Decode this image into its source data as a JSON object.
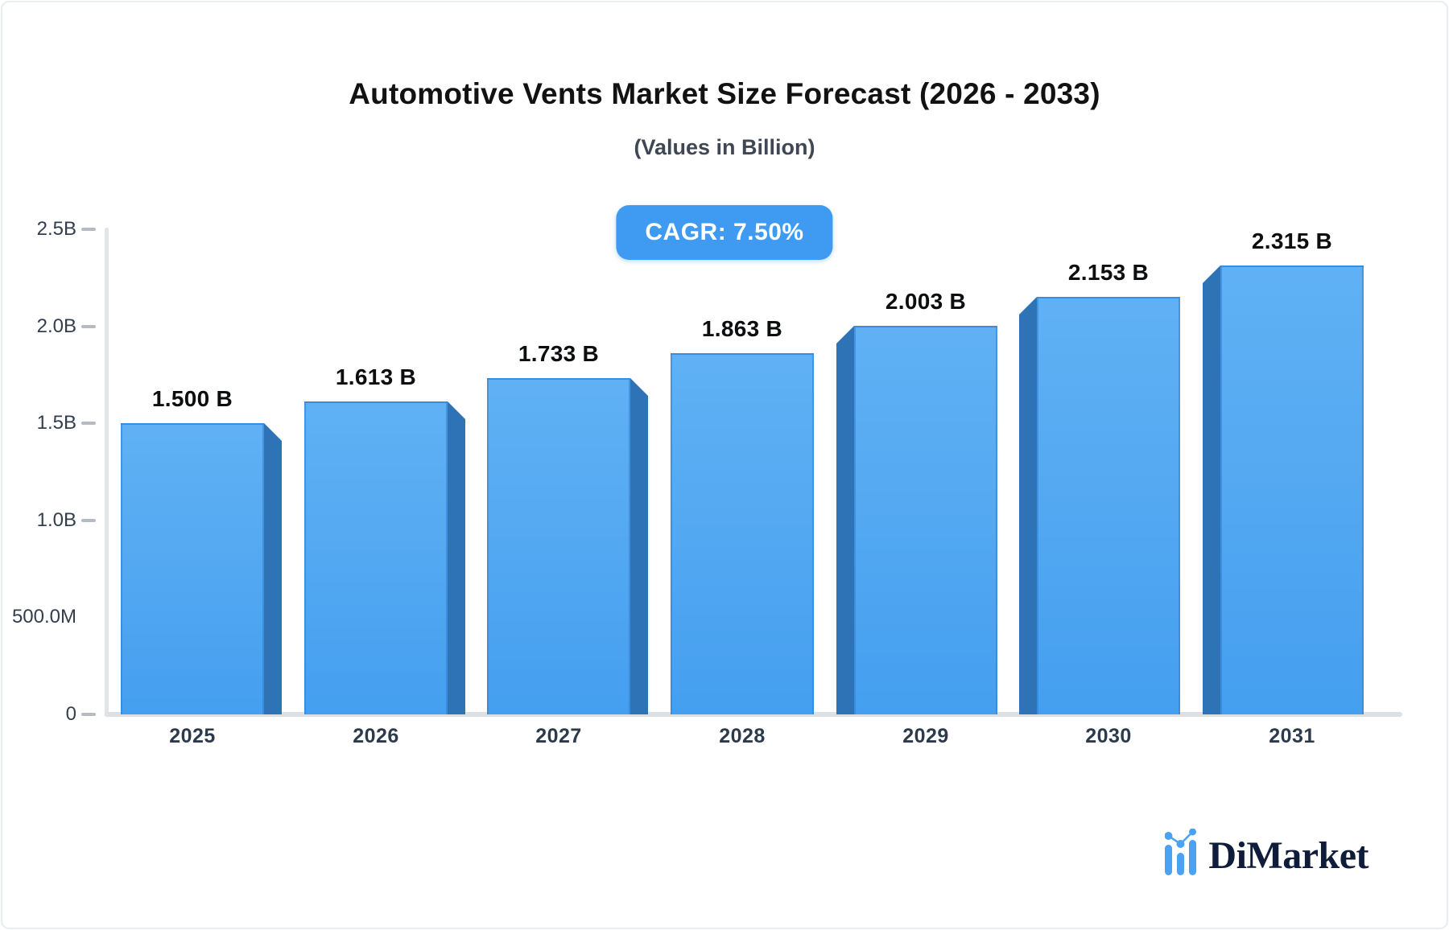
{
  "header": {
    "title": "Automotive Vents Market Size Forecast (2026 - 2033)",
    "subtitle": "(Values in Billion)"
  },
  "badge": {
    "label": "CAGR: 7.50%"
  },
  "chart_data": {
    "type": "bar",
    "title": "Automotive Vents Market Size Forecast (2026 - 2033)",
    "subtitle": "(Values in Billion)",
    "cagr": "7.50%",
    "categories": [
      "2025",
      "2026",
      "2027",
      "2028",
      "2029",
      "2030",
      "2031"
    ],
    "values": [
      1.5,
      1.613,
      1.733,
      1.863,
      2.003,
      2.153,
      2.315
    ],
    "value_labels": [
      "1.500 B",
      "1.613 B",
      "1.733 B",
      "1.863 B",
      "2.003 B",
      "2.153 B",
      "2.315 B"
    ],
    "ylim": [
      0,
      2.5
    ],
    "y_ticks": [
      {
        "label": "2.5B",
        "value": 2.5,
        "has_tick": true
      },
      {
        "label": "2.0B",
        "value": 2.0,
        "has_tick": true
      },
      {
        "label": "1.5B",
        "value": 1.5,
        "has_tick": true
      },
      {
        "label": "1.0B",
        "value": 1.0,
        "has_tick": true
      },
      {
        "label": "500.0M",
        "value": 0.5,
        "has_tick": false
      },
      {
        "label": "0",
        "value": 0.0,
        "has_tick": true
      }
    ],
    "grid": false,
    "legend": "none",
    "bar_color_top": "#60b1f4",
    "bar_color_bottom": "#459ff0",
    "bar_side_color": "#2d73b6"
  },
  "logo": {
    "text": "DiMarket",
    "icon": "mini-bar-chart-icon",
    "icon_color": "#4aa2f5",
    "text_color": "#0f1d3a"
  },
  "colors": {
    "accent_blue": "#3f9bf1",
    "axis_line": "#dde1e4",
    "tick": "#b4bbc2",
    "axis_label": "#323e4e",
    "title": "#121212",
    "subtitle": "#3f4754"
  }
}
